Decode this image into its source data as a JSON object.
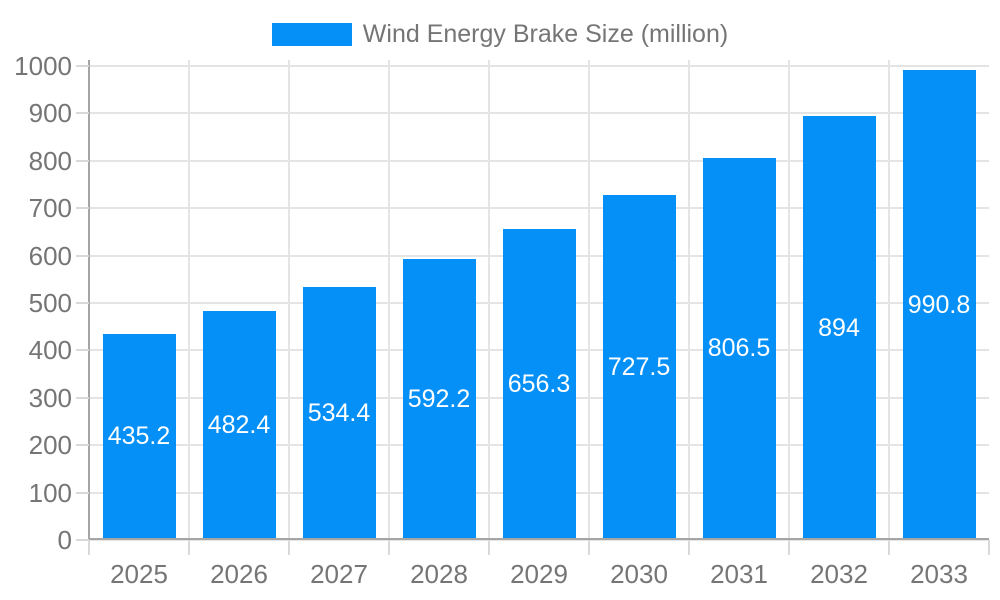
{
  "chart_data": {
    "type": "bar",
    "title": "Wind Energy Brake Size (million)",
    "legend": {
      "position": "top",
      "label": "Wind Energy Brake Size (million)"
    },
    "categories": [
      "2025",
      "2026",
      "2027",
      "2028",
      "2029",
      "2030",
      "2031",
      "2032",
      "2033"
    ],
    "series": [
      {
        "name": "Wind Energy Brake Size (million)",
        "values": [
          435.2,
          482.4,
          534.4,
          592.2,
          656.3,
          727.5,
          806.5,
          894,
          990.8
        ],
        "value_labels": [
          "435.2",
          "482.4",
          "534.4",
          "592.2",
          "656.3",
          "727.5",
          "806.5",
          "894",
          "990.8"
        ]
      }
    ],
    "xlabel": "",
    "ylabel": "",
    "ylim": [
      0,
      1000
    ],
    "yticks": [
      0,
      100,
      200,
      300,
      400,
      500,
      600,
      700,
      800,
      900,
      1000
    ],
    "grid": true,
    "value_labels_position": "inside-center",
    "colors": {
      "bar": "#0590f8",
      "value_label": "#ffffff",
      "axis_text": "#757575",
      "gridline": "#e4e4e4",
      "tick_mark": "#d9d9d9",
      "axis_line": "#a5a5a5",
      "background": "#ffffff"
    }
  }
}
